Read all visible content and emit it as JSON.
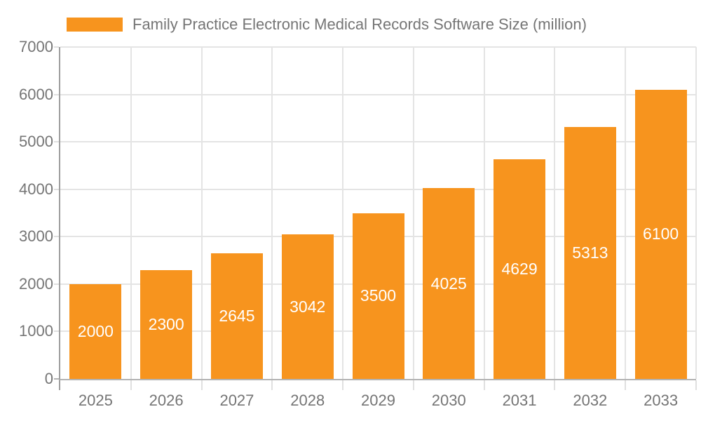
{
  "chart_data": {
    "type": "bar",
    "categories": [
      "2025",
      "2026",
      "2027",
      "2028",
      "2029",
      "2030",
      "2031",
      "2032",
      "2033"
    ],
    "series": [
      {
        "name": "Family Practice Electronic Medical Records Software Size (million)",
        "values": [
          2000,
          2300,
          2645,
          3042,
          3500,
          4025,
          4629,
          5313,
          6100
        ],
        "color": "#f7941e"
      }
    ],
    "title": "",
    "xlabel": "",
    "ylabel": "",
    "ylim": [
      0,
      7000
    ],
    "yticks": [
      0,
      1000,
      2000,
      3000,
      4000,
      5000,
      6000,
      7000
    ],
    "grid": true,
    "legend_position": "top-left",
    "bar_label_position": "inside-center",
    "colors": {
      "bar": "#f7941e",
      "bar_label_text": "#ffffff",
      "axis_label_text": "#757575",
      "legend_text": "#757575",
      "gridline": "#e4e4e4",
      "y_axis_line": "#9e9e9e",
      "x_axis_line": "#b3b3b3",
      "background": "#ffffff"
    }
  }
}
